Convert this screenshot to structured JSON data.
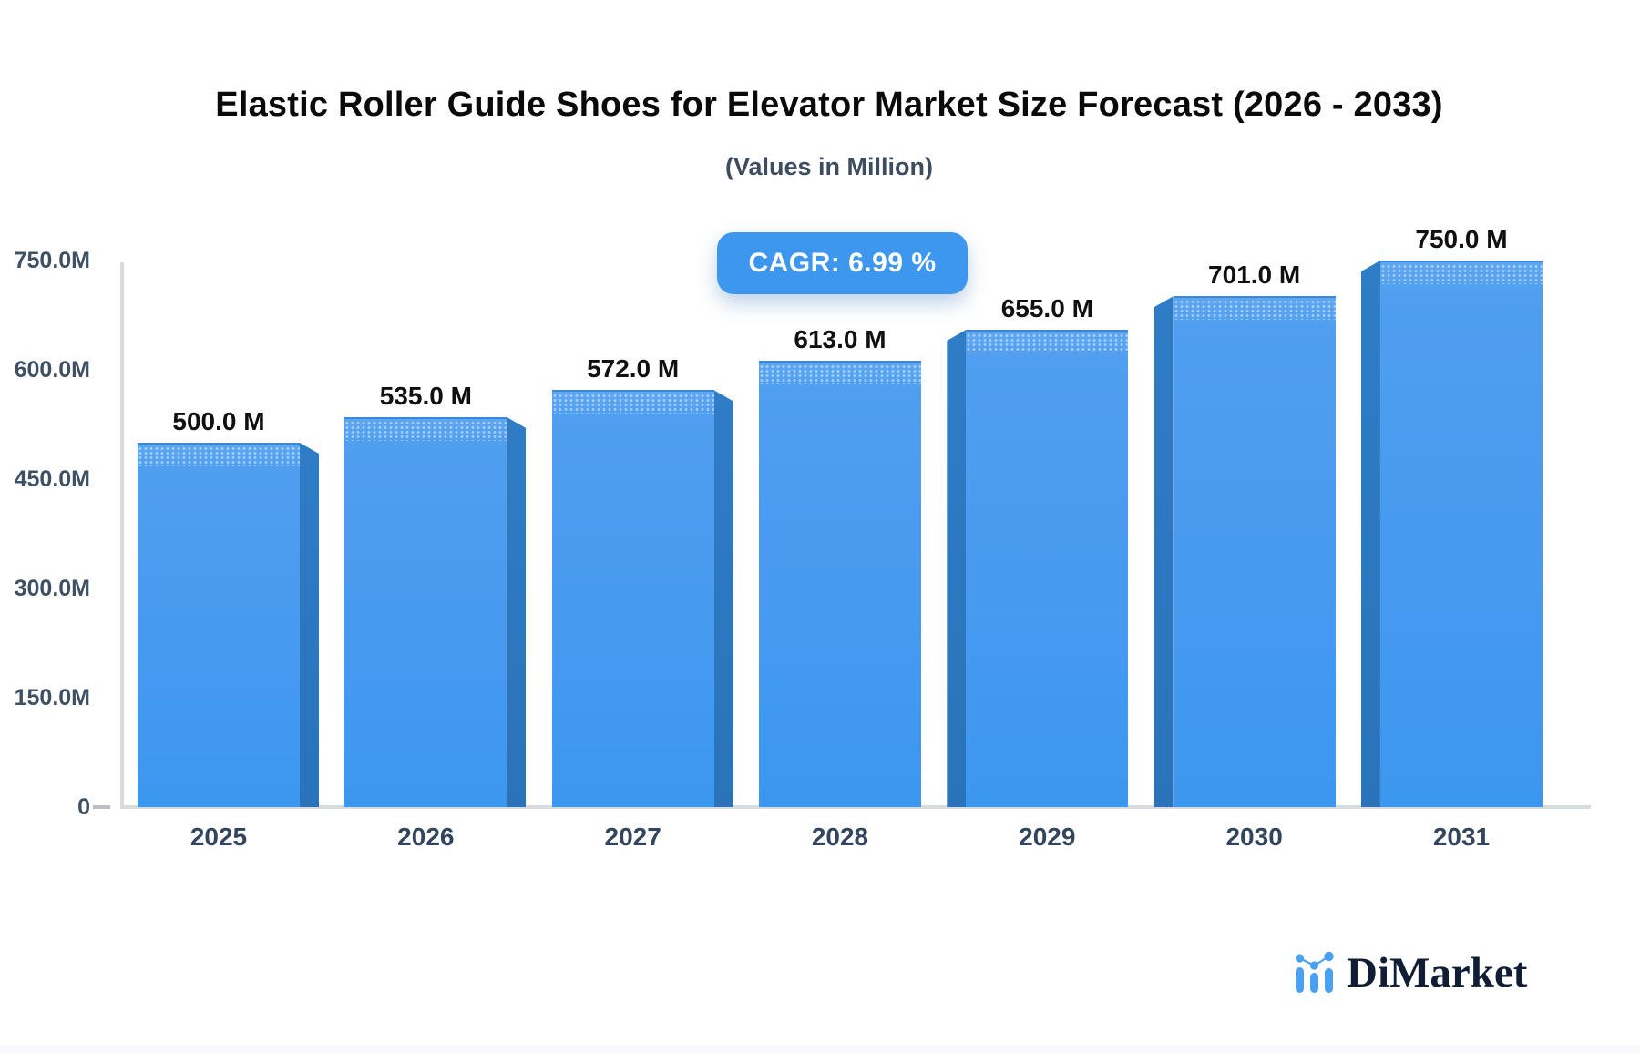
{
  "header": {
    "title": "Elastic Roller Guide Shoes for Elevator Market Size Forecast (2026 - 2033)",
    "subtitle": "(Values in Million)",
    "cagr_badge": "CAGR: 6.99 %"
  },
  "logo": {
    "text": "DiMarket",
    "icon": "bar-chart-icon",
    "icon_color": "#4aa0f2",
    "text_color": "#111d35"
  },
  "colors": {
    "bar_face": "#3e97ef",
    "bar_bevel": "#2d79c1",
    "axis_line": "#d9dcde",
    "badge_bg": "#3e97ef",
    "label_dark": "#33455c"
  },
  "chart_data": {
    "type": "bar",
    "title": "Elastic Roller Guide Shoes for Elevator Market Size Forecast (2026 - 2033)",
    "subtitle": "(Values in Million)",
    "unit": "Million",
    "categories": [
      "2025",
      "2026",
      "2027",
      "2028",
      "2029",
      "2030",
      "2031"
    ],
    "values": [
      500.0,
      535.0,
      572.0,
      613.0,
      655.0,
      701.0,
      750.0
    ],
    "bar_labels": [
      "500.0 M",
      "535.0 M",
      "572.0 M",
      "613.0 M",
      "655.0 M",
      "701.0 M",
      "750.0 M"
    ],
    "yticks": [
      "0",
      "150.0M",
      "300.0M",
      "450.0M",
      "600.0M",
      "750.0M"
    ],
    "ytick_values": [
      0,
      150,
      300,
      450,
      600,
      750
    ],
    "ylim": [
      0,
      750
    ],
    "xlabel": "",
    "ylabel": "",
    "grid": false,
    "legend": false,
    "cagr": "6.99 %"
  }
}
